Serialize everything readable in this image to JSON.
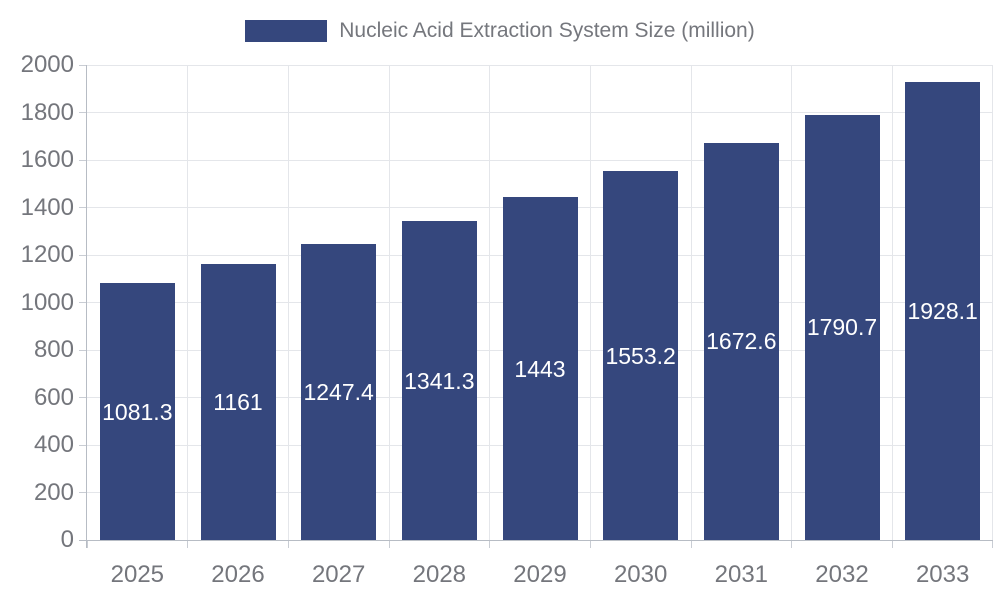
{
  "legend": {
    "label": "Nucleic Acid Extraction System Size (million)",
    "swatch_color": "#35477d"
  },
  "chart_data": {
    "type": "bar",
    "title": "",
    "series_name": "Nucleic Acid Extraction System Size (million)",
    "categories": [
      "2025",
      "2026",
      "2027",
      "2028",
      "2029",
      "2030",
      "2031",
      "2032",
      "2033"
    ],
    "values": [
      1081.3,
      1161,
      1247.4,
      1341.3,
      1443,
      1553.2,
      1672.6,
      1790.7,
      1928.1
    ],
    "value_labels": [
      "1081.3",
      "1161",
      "1247.4",
      "1341.3",
      "1443",
      "1553.2",
      "1672.6",
      "1790.7",
      "1928.1"
    ],
    "xlabel": "",
    "ylabel": "",
    "ylim": [
      0,
      2000
    ],
    "ytick_step": 200,
    "ytick_labels": [
      "0",
      "200",
      "400",
      "600",
      "800",
      "1000",
      "1200",
      "1400",
      "1600",
      "1800",
      "2000"
    ],
    "grid": true,
    "legend_position": "top-center",
    "colors": {
      "bar": "#35477d",
      "value_label": "#ffffff",
      "axis_text": "#74767c",
      "legend_text": "#75777d",
      "grid": "#e4e6ea",
      "axis_line": "#b7bcc4",
      "tick": "#c9cdd4"
    }
  }
}
